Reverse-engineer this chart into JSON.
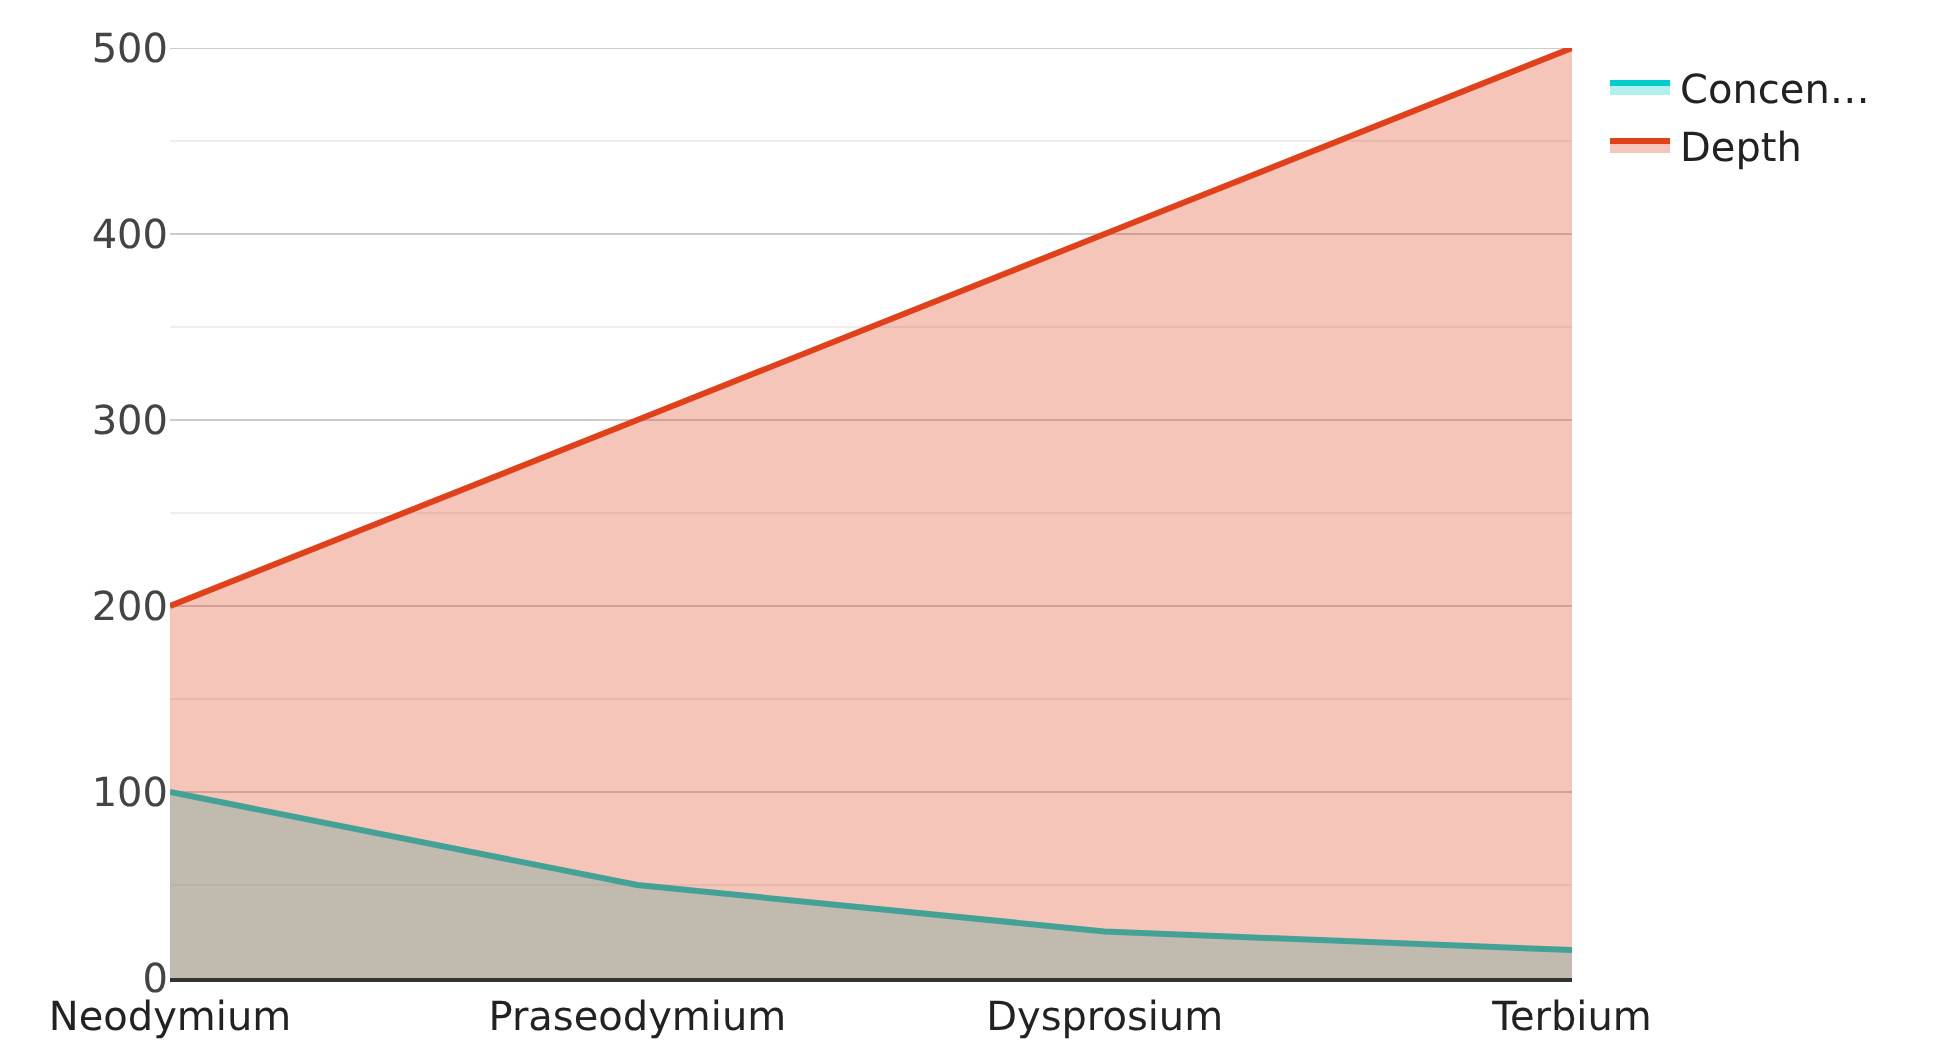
{
  "chart_data": {
    "type": "area",
    "categories": [
      "Neodymium",
      "Praseodymium",
      "Dysprosium",
      "Terbium"
    ],
    "series": [
      {
        "name": "Concen…",
        "color": "#00cccc",
        "values": [
          100,
          50,
          25,
          15
        ]
      },
      {
        "name": "Depth",
        "color": "#e0401a",
        "values": [
          200,
          300,
          400,
          500
        ]
      }
    ],
    "ylim": [
      0,
      500
    ],
    "yticks": [
      0,
      {
        "value": 50,
        "label": null
      },
      100,
      {
        "value": 150,
        "label": null
      },
      200,
      {
        "value": 250,
        "label": null
      },
      300,
      {
        "value": 350,
        "label": null
      },
      400,
      {
        "value": 450,
        "label": null
      },
      500
    ],
    "grid": true,
    "legend": "top right"
  }
}
